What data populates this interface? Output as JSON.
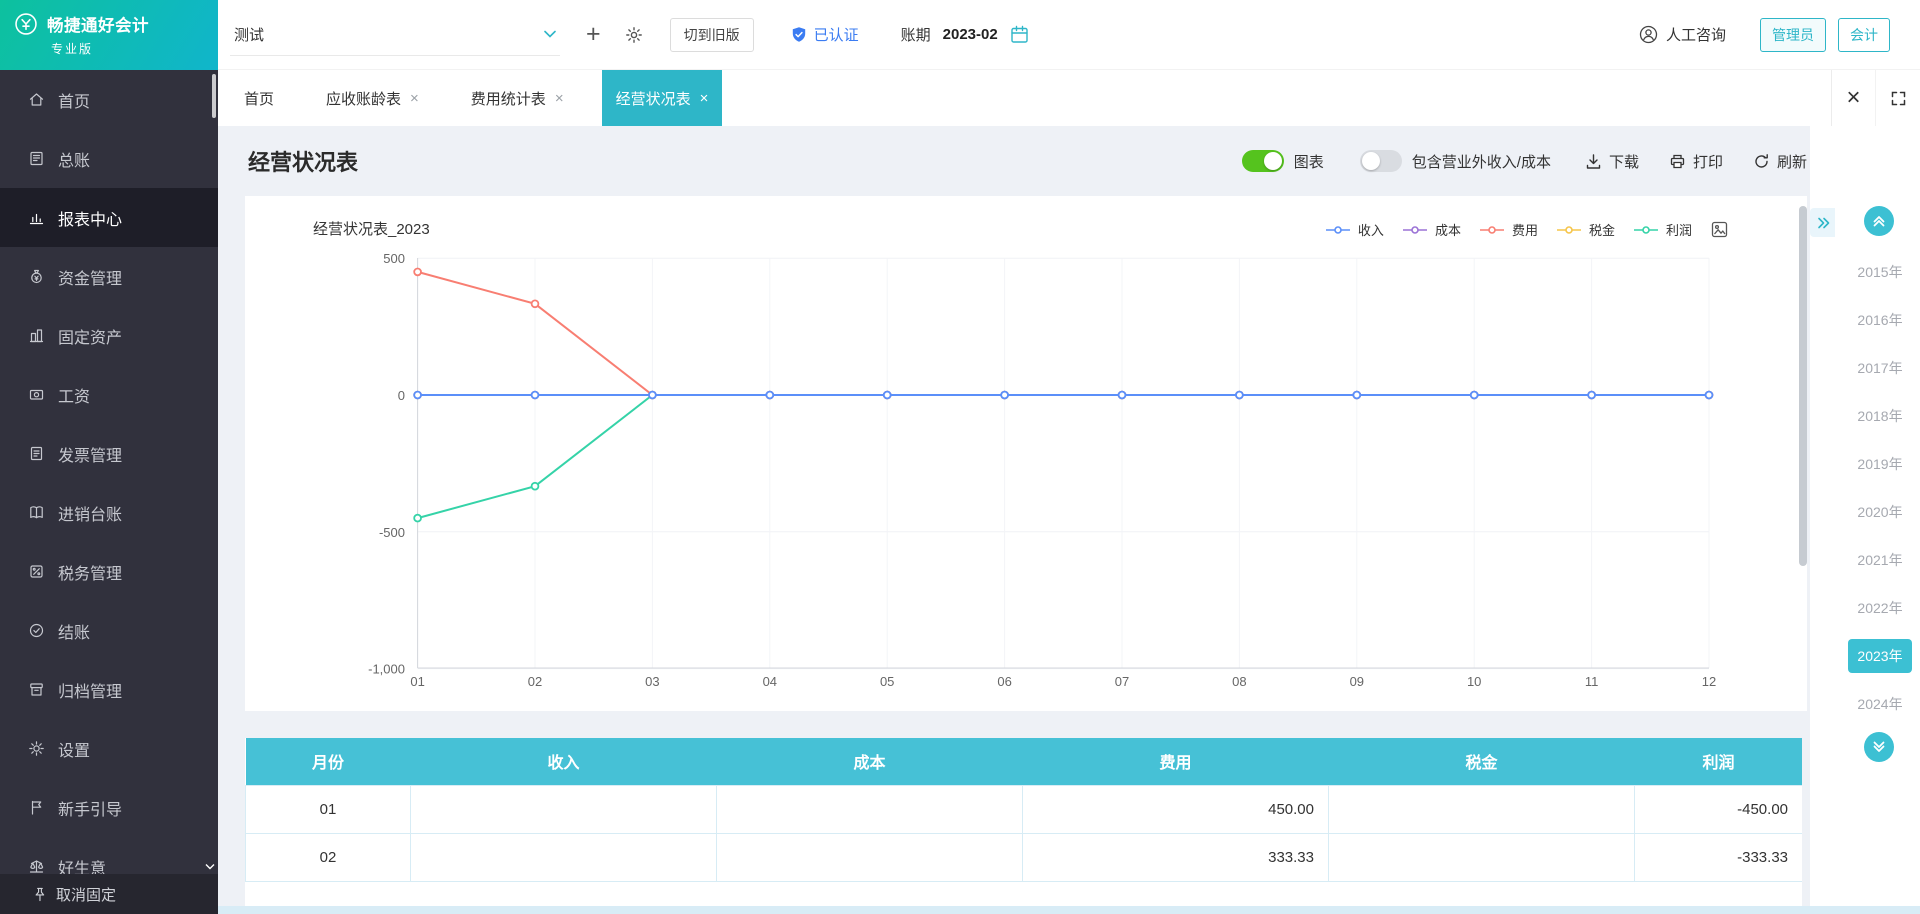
{
  "brand": {
    "title": "畅捷通好会计",
    "subtitle": "专业版"
  },
  "topbar": {
    "company_selector": "测试",
    "switch_old_button": "切到旧版",
    "certified_badge": "已认证",
    "period_label": "账期",
    "period_value": "2023-02",
    "support_label": "人工咨询",
    "admin_button": "管理员",
    "accountant_button": "会计"
  },
  "sidebar": {
    "items": [
      {
        "id": "home",
        "label": "首页",
        "icon": "home-icon",
        "active": false
      },
      {
        "id": "general-ledger",
        "label": "总账",
        "icon": "ledger-icon",
        "active": false
      },
      {
        "id": "report-center",
        "label": "报表中心",
        "icon": "report-icon",
        "active": true
      },
      {
        "id": "funds",
        "label": "资金管理",
        "icon": "funds-icon",
        "active": false
      },
      {
        "id": "fixed-assets",
        "label": "固定资产",
        "icon": "assets-icon",
        "active": false
      },
      {
        "id": "salary",
        "label": "工资",
        "icon": "salary-icon",
        "active": false
      },
      {
        "id": "invoice",
        "label": "发票管理",
        "icon": "invoice-icon",
        "active": false
      },
      {
        "id": "purchase-sale",
        "label": "进销台账",
        "icon": "inventory-icon",
        "active": false
      },
      {
        "id": "tax",
        "label": "税务管理",
        "icon": "tax-icon",
        "active": false
      },
      {
        "id": "closing",
        "label": "结账",
        "icon": "closing-icon",
        "active": false
      },
      {
        "id": "archive",
        "label": "归档管理",
        "icon": "archive-icon",
        "active": false
      },
      {
        "id": "settings",
        "label": "设置",
        "icon": "settings-icon",
        "active": false
      },
      {
        "id": "guide",
        "label": "新手引导",
        "icon": "guide-icon",
        "active": false
      },
      {
        "id": "haoshengyi",
        "label": "好生意",
        "icon": "business-icon",
        "active": false,
        "clipped": true
      }
    ],
    "footer_label": "取消固定"
  },
  "tabs": [
    {
      "label": "首页",
      "closable": false,
      "active": false
    },
    {
      "label": "应收账龄表",
      "closable": true,
      "active": false
    },
    {
      "label": "费用统计表",
      "closable": true,
      "active": false
    },
    {
      "label": "经营状况表",
      "closable": true,
      "active": true
    }
  ],
  "page": {
    "title": "经营状况表",
    "toggle_chart_label": "图表",
    "toggle_extra_label": "包含营业外收入/成本",
    "download_label": "下载",
    "print_label": "打印",
    "refresh_label": "刷新"
  },
  "chart_data": {
    "type": "line",
    "title": "经营状况表_2023",
    "x": [
      "01",
      "02",
      "03",
      "04",
      "05",
      "06",
      "07",
      "08",
      "09",
      "10",
      "11",
      "12"
    ],
    "y_ticks": [
      500,
      0,
      -500,
      -1000
    ],
    "ylim": [
      -1000,
      500
    ],
    "grid": true,
    "legend_position": "top-right",
    "series": [
      {
        "name": "收入",
        "color": "#5b8ff9",
        "values": [
          0,
          0,
          0,
          0,
          0,
          0,
          0,
          0,
          0,
          0,
          0,
          0
        ]
      },
      {
        "name": "成本",
        "color": "#9b72d6",
        "values": [
          0,
          0,
          0,
          0,
          0,
          0,
          0,
          0,
          0,
          0,
          0,
          0
        ]
      },
      {
        "name": "费用",
        "color": "#f87e72",
        "values": [
          450,
          333.33,
          0,
          0,
          0,
          0,
          0,
          0,
          0,
          0,
          0,
          0
        ]
      },
      {
        "name": "税金",
        "color": "#f6c54a",
        "values": [
          0,
          0,
          0,
          0,
          0,
          0,
          0,
          0,
          0,
          0,
          0,
          0
        ]
      },
      {
        "name": "利润",
        "color": "#35d3a8",
        "values": [
          -450,
          -333.33,
          0,
          0,
          0,
          0,
          0,
          0,
          0,
          0,
          0,
          0
        ]
      }
    ]
  },
  "year_panel": {
    "years": [
      "2015年",
      "2016年",
      "2017年",
      "2018年",
      "2019年",
      "2020年",
      "2021年",
      "2022年",
      "2023年",
      "2024年"
    ],
    "selected": "2023年"
  },
  "table": {
    "headers": [
      "月份",
      "收入",
      "成本",
      "费用",
      "税金",
      "利润"
    ],
    "rows": [
      [
        "01",
        "",
        "",
        "450.00",
        "",
        "-450.00"
      ],
      [
        "02",
        "",
        "",
        "333.33",
        "",
        "-333.33"
      ]
    ]
  }
}
